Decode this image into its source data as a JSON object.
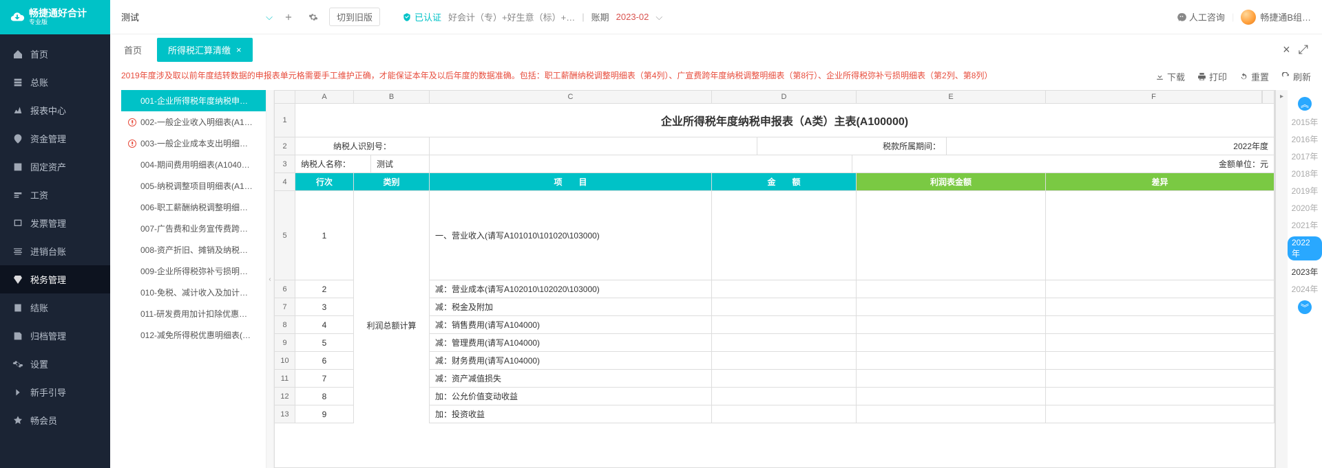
{
  "brand": {
    "name": "畅捷通好合计",
    "edition": "专业版"
  },
  "topbar": {
    "company": "测试",
    "old_version_btn": "切到旧版",
    "verified": "已认证",
    "context": "好会计（专）+好生意（标）+…",
    "period_label": "账期",
    "period_value": "2023-02",
    "human_help": "人工咨询",
    "user_name": "畅捷通B组…"
  },
  "sidebar": {
    "items": [
      {
        "label": "首页"
      },
      {
        "label": "总账"
      },
      {
        "label": "报表中心"
      },
      {
        "label": "资金管理"
      },
      {
        "label": "固定资产"
      },
      {
        "label": "工资"
      },
      {
        "label": "发票管理"
      },
      {
        "label": "进销台账"
      },
      {
        "label": "税务管理"
      },
      {
        "label": "结账"
      },
      {
        "label": "归档管理"
      },
      {
        "label": "设置"
      },
      {
        "label": "新手引导"
      },
      {
        "label": "畅会员"
      }
    ],
    "active_index": 8
  },
  "tabs": {
    "home": "首页",
    "active": "所得税汇算清缴"
  },
  "warning": "2019年度涉及取以前年度结转数据的申报表单元格需要手工维护正确，才能保证本年及以后年度的数据准确。包括：职工薪酬纳税调整明细表（第4列）、广宣费跨年度纳税调整明细表（第8行）、企业所得税弥补亏损明细表（第2列、第8列）",
  "toolbar": {
    "download": "下载",
    "print": "打印",
    "reset": "重置",
    "refresh": "刷新"
  },
  "form_list": [
    {
      "label": "001-企业所得税年度纳税申…",
      "sel": true,
      "warn": false
    },
    {
      "label": "002-一般企业收入明细表(A1…",
      "warn": true
    },
    {
      "label": "003-一般企业成本支出明细…",
      "warn": true
    },
    {
      "label": "004-期间费用明细表(A1040…"
    },
    {
      "label": "005-纳税调整项目明细表(A1…"
    },
    {
      "label": "006-职工薪酬纳税调整明细…"
    },
    {
      "label": "007-广告费和业务宣传费跨…"
    },
    {
      "label": "008-资产折旧、摊销及纳税…"
    },
    {
      "label": "009-企业所得税弥补亏损明…"
    },
    {
      "label": "010-免税、减计收入及加计…"
    },
    {
      "label": "011-研发费用加计扣除优惠…"
    },
    {
      "label": "012-减免所得税优惠明细表(…"
    }
  ],
  "sheet": {
    "cols": [
      "A",
      "B",
      "C",
      "D",
      "E",
      "F"
    ],
    "title": "企业所得税年度纳税申报表（A类）主表(A100000)",
    "row2": {
      "left": "纳税人识别号：",
      "right_label": "税款所属期间：",
      "right_value": "2022年度"
    },
    "row3": {
      "left": "纳税人名称：",
      "name": "测试",
      "unit": "金额单位：元"
    },
    "headers": {
      "A": "行次",
      "B": "类别",
      "C": "项　　目",
      "D": "金　　额",
      "E": "利润表金额",
      "F": "差异"
    },
    "category_merge": "利润总额计算",
    "rows": [
      {
        "n": "1",
        "c": "一、营业收入(请写A101010\\101020\\103000)",
        "tall": true
      },
      {
        "n": "2",
        "c": "减：营业成本(请写A102010\\102020\\103000)"
      },
      {
        "n": "3",
        "c": "减：税金及附加"
      },
      {
        "n": "4",
        "c": "减：销售费用(请写A104000)"
      },
      {
        "n": "5",
        "c": "减：管理费用(请写A104000)"
      },
      {
        "n": "6",
        "c": "减：财务费用(请写A104000)"
      },
      {
        "n": "7",
        "c": "减：资产减值损失"
      },
      {
        "n": "8",
        "c": "加：公允价值变动收益"
      },
      {
        "n": "9",
        "c": "加：投资收益"
      }
    ]
  },
  "years": [
    "2015年",
    "2016年",
    "2017年",
    "2018年",
    "2019年",
    "2020年",
    "2021年",
    "2022年",
    "2023年",
    "2024年"
  ],
  "active_year": "2022年",
  "strong_year": "2023年"
}
